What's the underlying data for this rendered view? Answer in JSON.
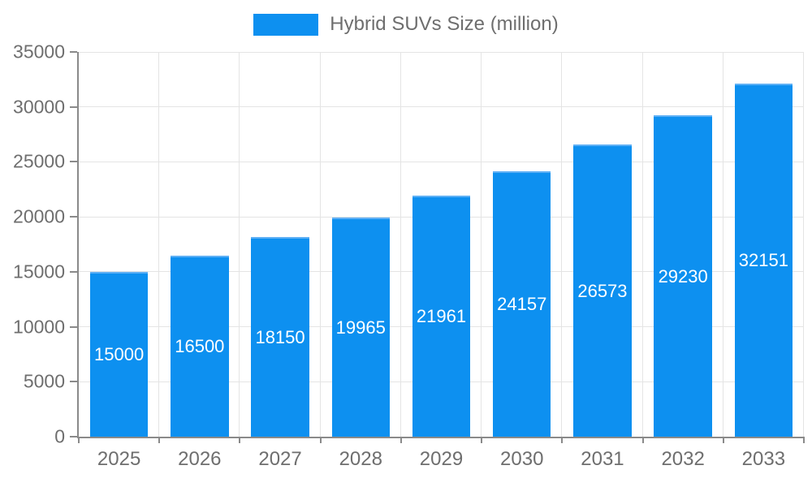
{
  "chart_data": {
    "type": "bar",
    "title": "Hybrid SUVs Size (million)",
    "legend_label": "Hybrid SUVs Size (million)",
    "legend_position": "top-center",
    "categories": [
      "2025",
      "2026",
      "2027",
      "2028",
      "2029",
      "2030",
      "2031",
      "2032",
      "2033"
    ],
    "series": [
      {
        "name": "Hybrid SUVs Size (million)",
        "values": [
          15000,
          16500,
          18150,
          19965,
          21961,
          24157,
          26573,
          29230,
          32151
        ]
      }
    ],
    "value_labels": [
      "15000",
      "16500",
      "18150",
      "19965",
      "21961",
      "24157",
      "26573",
      "29230",
      "32151"
    ],
    "xlabel": "",
    "ylabel": "",
    "ylim": [
      0,
      35000
    ],
    "y_ticks": [
      0,
      5000,
      10000,
      15000,
      20000,
      25000,
      30000,
      35000
    ],
    "grid": true,
    "colors": {
      "bar_fill": "#0d90f0",
      "bar_top_edge": "#5fb0f5",
      "value_label_text": "#ffffff",
      "axis_text": "#6e6e6e",
      "grid_line": "#e4e4e4",
      "axis_line": "#8a8a8a",
      "background": "#ffffff"
    }
  }
}
